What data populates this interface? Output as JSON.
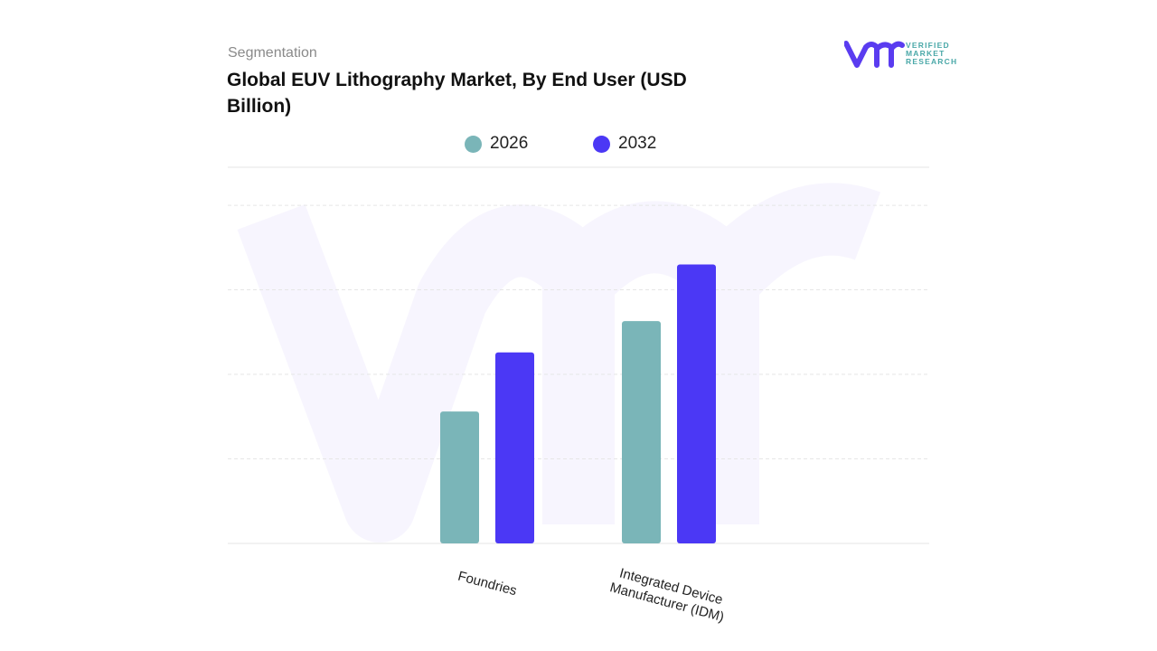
{
  "header": {
    "kicker": "Segmentation",
    "title": "Global EUV Lithography Market, By End User (USD Billion)"
  },
  "logo": {
    "text_lines": [
      "VERIFIED",
      "MARKET",
      "RESEARCH"
    ],
    "colors": {
      "mark": "#5a3cf0",
      "text": "#4aa8a8"
    }
  },
  "chart_data": {
    "type": "bar",
    "title": "Global EUV Lithography Market, By End User (USD Billion)",
    "categories": [
      "Foundries",
      "Integrated Device Manufacturer (IDM)"
    ],
    "series": [
      {
        "name": "2026",
        "values": [
          1.56,
          2.63
        ],
        "color": "#7ab5b8"
      },
      {
        "name": "2032",
        "values": [
          2.26,
          3.3
        ],
        "color": "#4b38f5"
      }
    ],
    "ylim": [
      0,
      4.45
    ],
    "grid": true,
    "legend": "top",
    "note_values": "estimated from bar heights; no axis labels printed"
  }
}
